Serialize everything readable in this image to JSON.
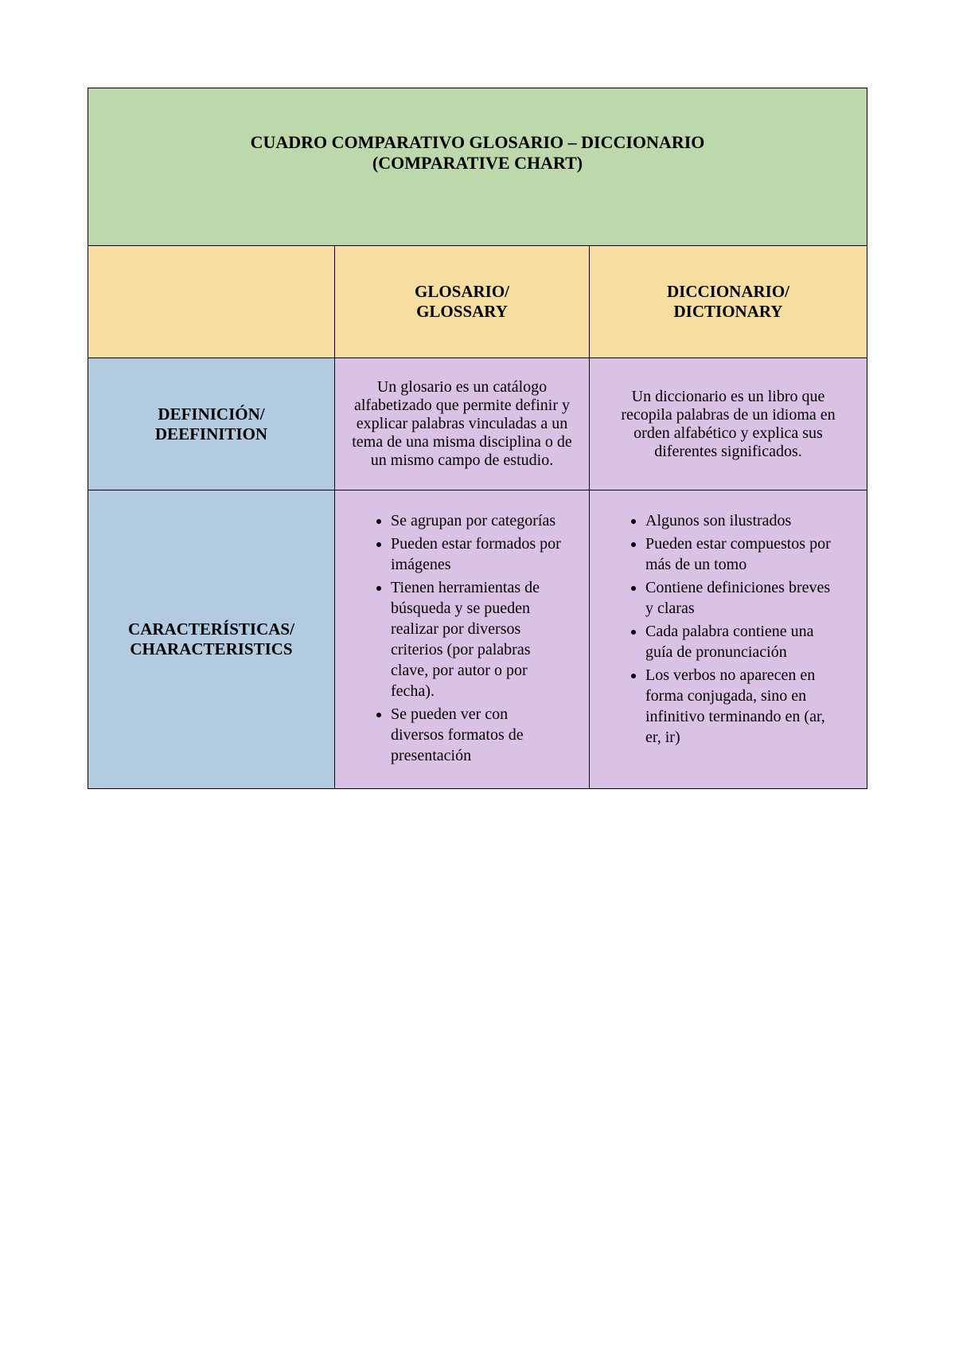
{
  "table": {
    "colors": {
      "titleBg": "#bdd8ab",
      "headerBg": "#f7dd9f",
      "rowLabelBg": "#b3cbe0",
      "dataBg": "#dac2e5",
      "border": "#000000",
      "text": "#000000"
    },
    "title": {
      "line1": "CUADRO COMPARATIVO GLOSARIO – DICCIONARIO",
      "line2": "(COMPARATIVE CHART)"
    },
    "columns": {
      "blank": "",
      "glossary": {
        "line1": "GLOSARIO/",
        "line2": "GLOSSARY"
      },
      "dictionary": {
        "line1": "DICCIONARIO/",
        "line2": "DICTIONARY"
      }
    },
    "rows": {
      "definition": {
        "label_line1": "DEFINICIÓN/",
        "label_line2": "DEEFINITION",
        "glossary": "Un glosario es un catálogo alfabetizado que permite definir y explicar palabras vinculadas a un tema de una misma disciplina o de un mismo campo de estudio.",
        "dictionary": "Un diccionario es un libro que recopila palabras de un idioma en orden alfabético y explica sus diferentes significados."
      },
      "characteristics": {
        "label_line1": "CARACTERÍSTICAS/",
        "label_line2": "CHARACTERISTICS",
        "glossary_items": [
          "Se agrupan por categorías",
          "Pueden estar formados por imágenes",
          "Tienen herramientas de búsqueda y se pueden realizar por diversos criterios (por palabras clave, por autor o por fecha).",
          "Se pueden ver con diversos formatos de presentación"
        ],
        "dictionary_items": [
          "Algunos son ilustrados",
          "Pueden estar compuestos por más de un tomo",
          "Contiene definiciones breves y claras",
          "Cada palabra contiene una guía de pronunciación",
          "Los verbos no aparecen en forma conjugada, sino en infinitivo terminando en (ar, er, ir)"
        ]
      }
    }
  }
}
